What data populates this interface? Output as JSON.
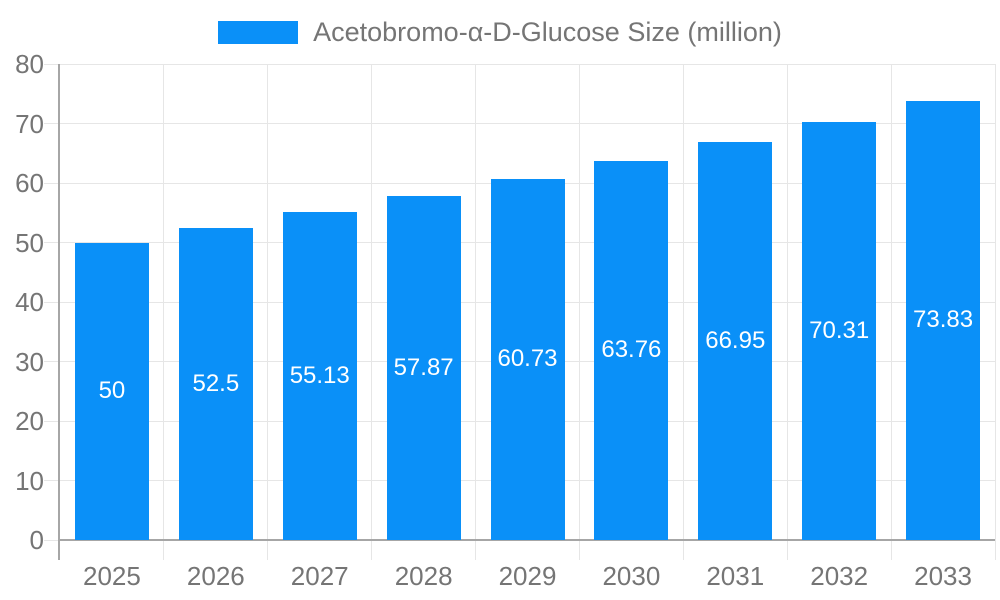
{
  "chart_data": {
    "type": "bar",
    "title": "Acetobromo-α-D-Glucose Size (million)",
    "categories": [
      "2025",
      "2026",
      "2027",
      "2028",
      "2029",
      "2030",
      "2031",
      "2032",
      "2033"
    ],
    "values": [
      50,
      52.5,
      55.13,
      57.87,
      60.73,
      63.76,
      66.95,
      70.31,
      73.83
    ],
    "value_labels": [
      "50",
      "52.5",
      "55.13",
      "57.87",
      "60.73",
      "63.76",
      "66.95",
      "70.31",
      "73.83"
    ],
    "xlabel": "",
    "ylabel": "",
    "ylim": [
      0,
      80
    ],
    "ytick_step": 10,
    "ytick_labels": [
      "0",
      "10",
      "20",
      "30",
      "40",
      "50",
      "60",
      "70",
      "80"
    ],
    "grid": true,
    "legend_position": "top-center",
    "colors": {
      "bar": "#0a90f8",
      "grid": "#e6e6e6",
      "axis": "#a6a6a6",
      "tick_label": "#757575",
      "legend_text": "#757575",
      "value_label": "#ffffff",
      "background": "#ffffff"
    }
  }
}
